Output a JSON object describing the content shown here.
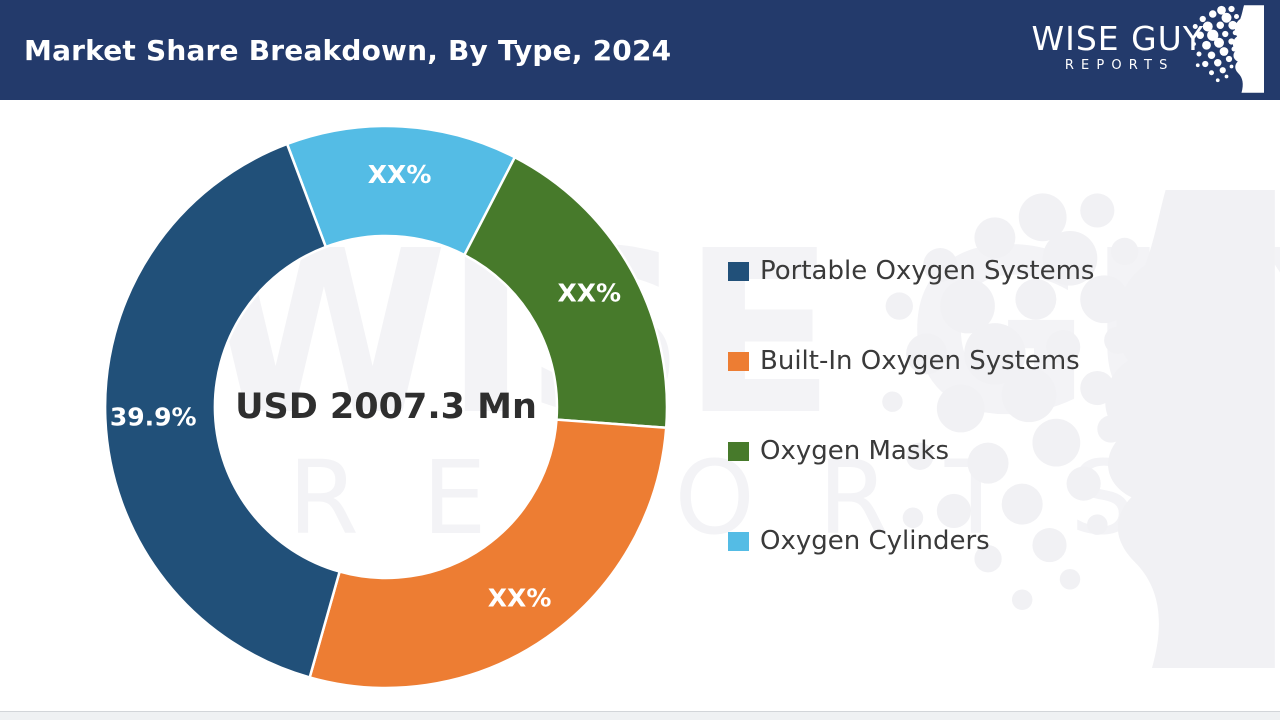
{
  "header": {
    "title": "Market Share Breakdown, By Type, 2024",
    "logo": {
      "name": "WISE GUY",
      "sub": "REPORTS",
      "face_icon": "dotted-face-profile-icon"
    }
  },
  "watermark": {
    "line1": "WISE GUY",
    "line2": "REPORTS",
    "face_icon": "dotted-face-profile-icon"
  },
  "chart_data": {
    "type": "pie",
    "donut": true,
    "title": "Market Share Breakdown, By Type, 2024",
    "center_label": "USD 2007.3 Mn",
    "legend_position": "right",
    "start_angle_deg": -20.6,
    "draw_order": "clockwise-from-last-series",
    "series": [
      {
        "label": "Portable Oxygen Systems",
        "display_label": "39.9%",
        "value_pct": 39.9,
        "color": "#215079"
      },
      {
        "label": "Built-In Oxygen Systems",
        "display_label": "XX%",
        "value_pct": 28.2,
        "color": "#ED7D33"
      },
      {
        "label": "Oxygen Masks",
        "display_label": "XX%",
        "value_pct": 18.6,
        "color": "#477A2B"
      },
      {
        "label": "Oxygen Cylinders",
        "display_label": "XX%",
        "value_pct": 13.3,
        "color": "#54BCE5"
      }
    ],
    "note_colors": {
      "header_bg": "#233A6B",
      "center_text": "#2E2E2E",
      "legend_text": "#3A3A3A",
      "slice_label_text": "#FFFFFF"
    }
  }
}
